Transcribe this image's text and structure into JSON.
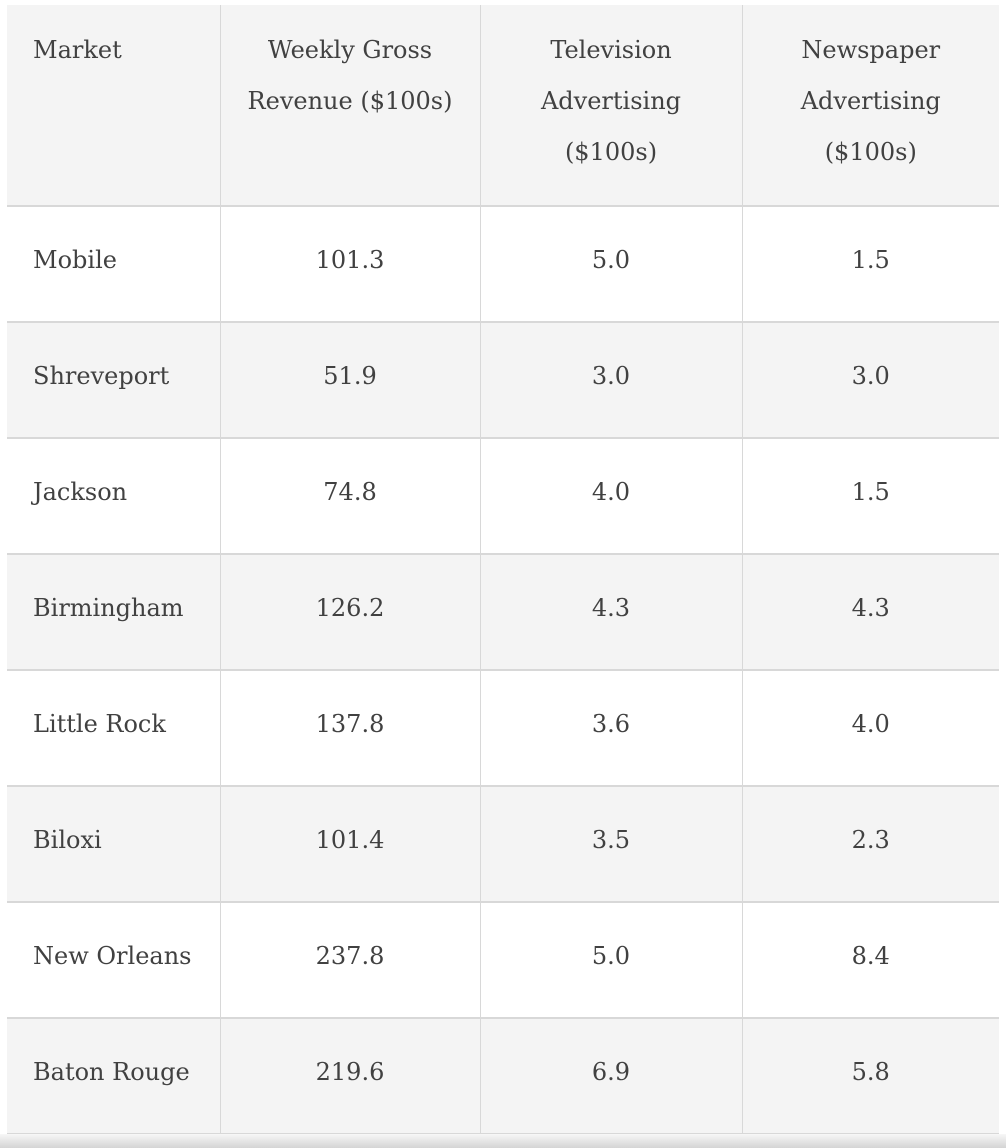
{
  "table": {
    "columns": [
      {
        "label": "Market"
      },
      {
        "label": "Weekly Gross\nRevenue ($100s)"
      },
      {
        "label": "Television\nAdvertising\n($100s)"
      },
      {
        "label": "Newspaper\nAdvertising\n($100s)"
      }
    ],
    "rows": [
      {
        "market": "Mobile",
        "revenue": "101.3",
        "tv": "5.0",
        "newspaper": "1.5"
      },
      {
        "market": "Shreveport",
        "revenue": "51.9",
        "tv": "3.0",
        "newspaper": "3.0"
      },
      {
        "market": "Jackson",
        "revenue": "74.8",
        "tv": "4.0",
        "newspaper": "1.5"
      },
      {
        "market": "Birmingham",
        "revenue": "126.2",
        "tv": "4.3",
        "newspaper": "4.3"
      },
      {
        "market": "Little Rock",
        "revenue": "137.8",
        "tv": "3.6",
        "newspaper": "4.0"
      },
      {
        "market": "Biloxi",
        "revenue": "101.4",
        "tv": "3.5",
        "newspaper": "2.3"
      },
      {
        "market": "New Orleans",
        "revenue": "237.8",
        "tv": "5.0",
        "newspaper": "8.4"
      },
      {
        "market": "Baton Rouge",
        "revenue": "219.6",
        "tv": "6.9",
        "newspaper": "5.8"
      }
    ]
  },
  "colors": {
    "stripe_bg": "#f4f4f4",
    "border": "#d8d8d8",
    "text": "#414141"
  },
  "chart_data": {
    "type": "table",
    "columns": [
      "Market",
      "Weekly Gross Revenue ($100s)",
      "Television Advertising ($100s)",
      "Newspaper Advertising ($100s)"
    ],
    "rows": [
      [
        "Mobile",
        101.3,
        5.0,
        1.5
      ],
      [
        "Shreveport",
        51.9,
        3.0,
        3.0
      ],
      [
        "Jackson",
        74.8,
        4.0,
        1.5
      ],
      [
        "Birmingham",
        126.2,
        4.3,
        4.3
      ],
      [
        "Little Rock",
        137.8,
        3.6,
        4.0
      ],
      [
        "Biloxi",
        101.4,
        3.5,
        2.3
      ],
      [
        "New Orleans",
        237.8,
        5.0,
        8.4
      ],
      [
        "Baton Rouge",
        219.6,
        6.9,
        5.8
      ]
    ]
  }
}
